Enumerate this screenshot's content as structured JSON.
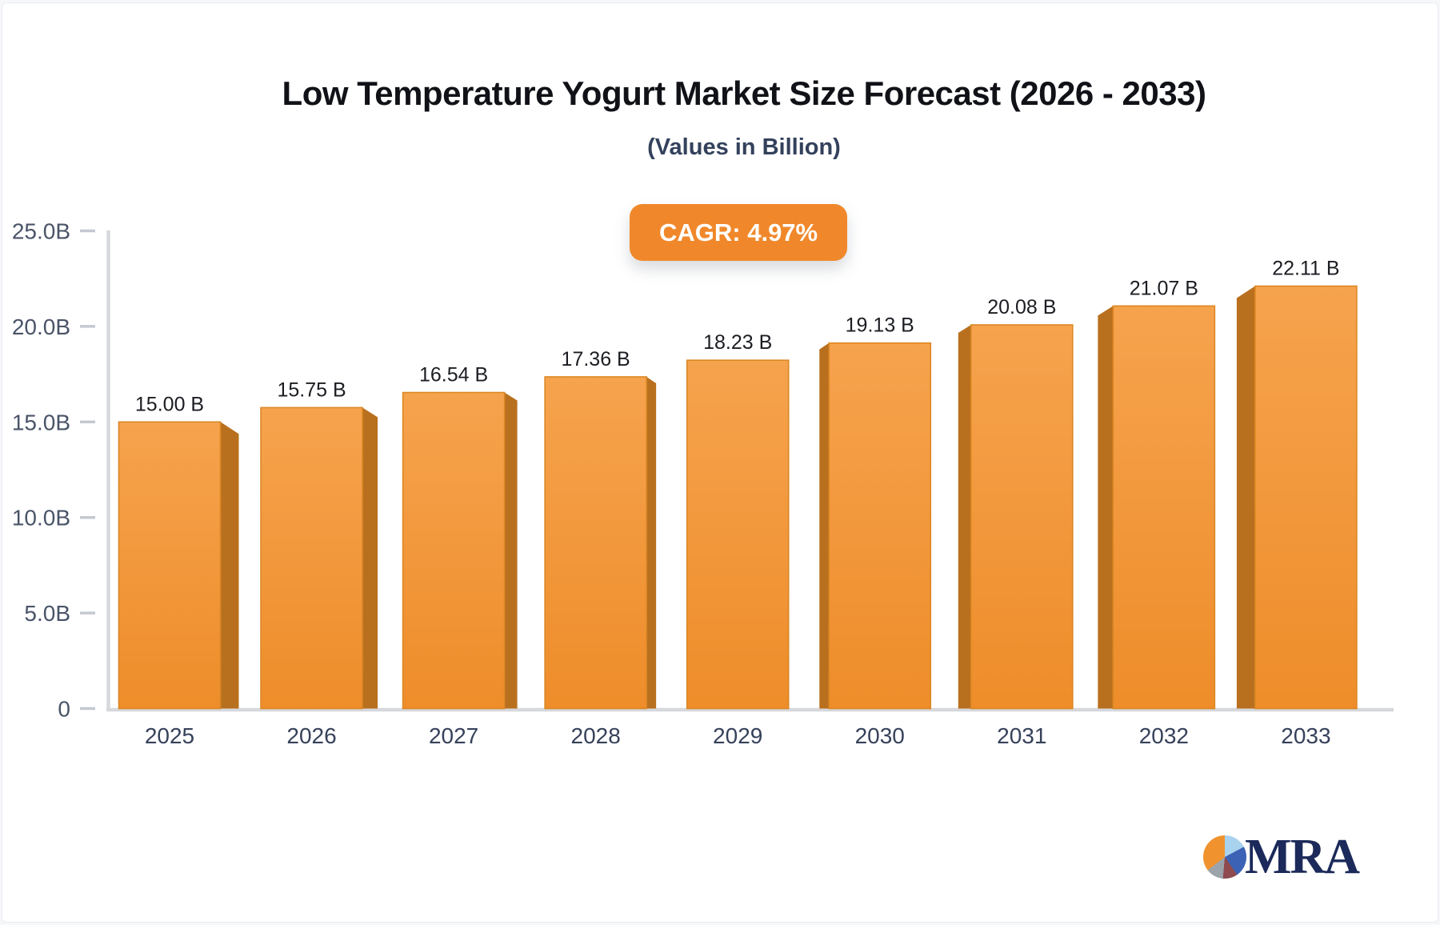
{
  "header": {
    "title": "Low Temperature Yogurt Market Size Forecast (2026 - 2033)",
    "subtitle": "(Values in Billion)",
    "badge_label": "CAGR: 4.97%",
    "badge_color": "#f0882b"
  },
  "chart_data": {
    "type": "bar",
    "title": "Low Temperature Yogurt Market Size Forecast (2026 - 2033)",
    "subtitle": "(Values in Billion)",
    "cagr_annotation": "CAGR: 4.97%",
    "categories": [
      "2025",
      "2026",
      "2027",
      "2028",
      "2029",
      "2030",
      "2031",
      "2032",
      "2033"
    ],
    "values": [
      15.0,
      15.75,
      16.54,
      17.36,
      18.23,
      19.13,
      20.08,
      21.07,
      22.11
    ],
    "value_labels": [
      "15.00 B",
      "15.75 B",
      "16.54 B",
      "17.36 B",
      "18.23 B",
      "19.13 B",
      "20.08 B",
      "21.07 B",
      "22.11 B"
    ],
    "xlabel": "",
    "ylabel": "",
    "ylim": [
      0,
      25
    ],
    "yticks": [
      {
        "v": 0,
        "label": "0"
      },
      {
        "v": 5,
        "label": "5.0B"
      },
      {
        "v": 10,
        "label": "10.0B"
      },
      {
        "v": 15,
        "label": "15.0B"
      },
      {
        "v": 20,
        "label": "20.0B"
      },
      {
        "v": 25,
        "label": "25.0B"
      }
    ],
    "grid": false,
    "legend": "none",
    "colors": {
      "bar_top": "#f6a34e",
      "bar_bottom": "#ee8d2a",
      "bar_outline": "#dc8724",
      "bar_side": "#b9701e",
      "axis_line": "#d6d8dc",
      "tick_mark": "#c4c9d1",
      "tick_text": "#4a5468",
      "category_text": "#36415a",
      "value_text": "#1b1d22"
    }
  },
  "logo": {
    "text": "MRA",
    "pie_icon_colors": [
      "#f0932f",
      "#a9d2ee",
      "#3b62b5",
      "#8e4a4e",
      "#9ca3ab"
    ]
  }
}
